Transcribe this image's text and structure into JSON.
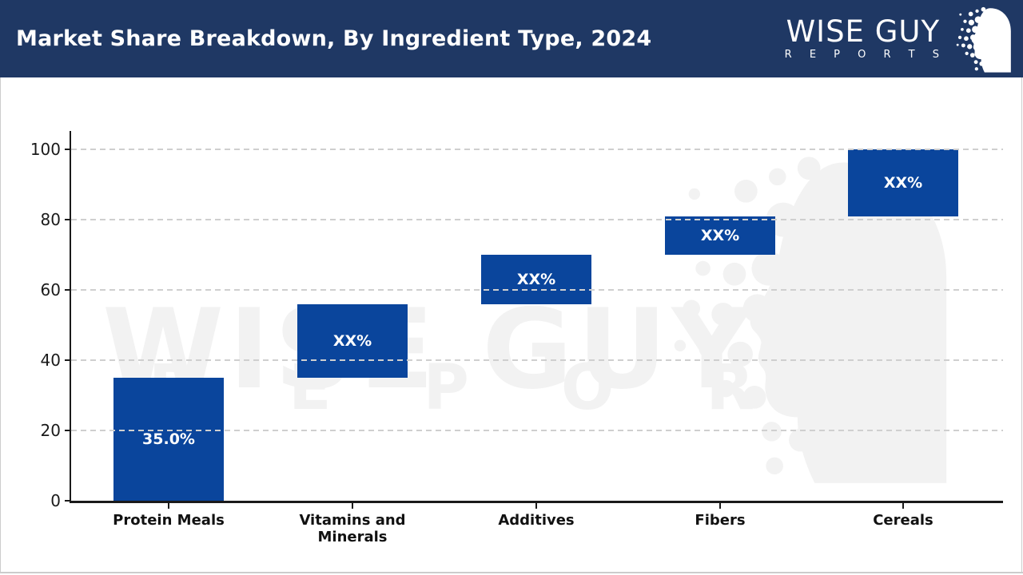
{
  "header": {
    "title": "Market Share Breakdown, By Ingredient Type, 2024",
    "background_color": "#1f3864",
    "logo": {
      "line1": "WISE GUY",
      "line2": "R E P O R T S",
      "face_icon": "dotted-head-profile"
    }
  },
  "watermark": {
    "line1": "WISE GUY",
    "line2": "R E P O R T S",
    "face_icon": "dotted-head-profile",
    "color": "#f2f2f2"
  },
  "chart_data": {
    "type": "bar",
    "subtype": "waterfall",
    "title": "Market Share Breakdown, By Ingredient Type, 2024",
    "categories": [
      "Protein Meals",
      "Vitamins and Minerals",
      "Additives",
      "Fibers",
      "Cereals"
    ],
    "segments": [
      {
        "category": "Protein Meals",
        "start": 0,
        "end": 35,
        "label": "35.0%"
      },
      {
        "category": "Vitamins and Minerals",
        "start": 35,
        "end": 56,
        "label": "XX%"
      },
      {
        "category": "Additives",
        "start": 56,
        "end": 70,
        "label": "XX%"
      },
      {
        "category": "Fibers",
        "start": 70,
        "end": 81,
        "label": "XX%"
      },
      {
        "category": "Cereals",
        "start": 81,
        "end": 100,
        "label": "XX%"
      }
    ],
    "yticks": [
      0,
      20,
      40,
      60,
      80,
      100
    ],
    "ylim": [
      0,
      100
    ],
    "xlabel": "",
    "ylabel": "",
    "legend": "none",
    "grid": "horizontal dashed, drawn above bars",
    "bar_color": "#0a459c",
    "bar_label_color": "#ffffff",
    "axis_color": "#1a1a1a",
    "gridline_color": "#cfcfcf"
  }
}
